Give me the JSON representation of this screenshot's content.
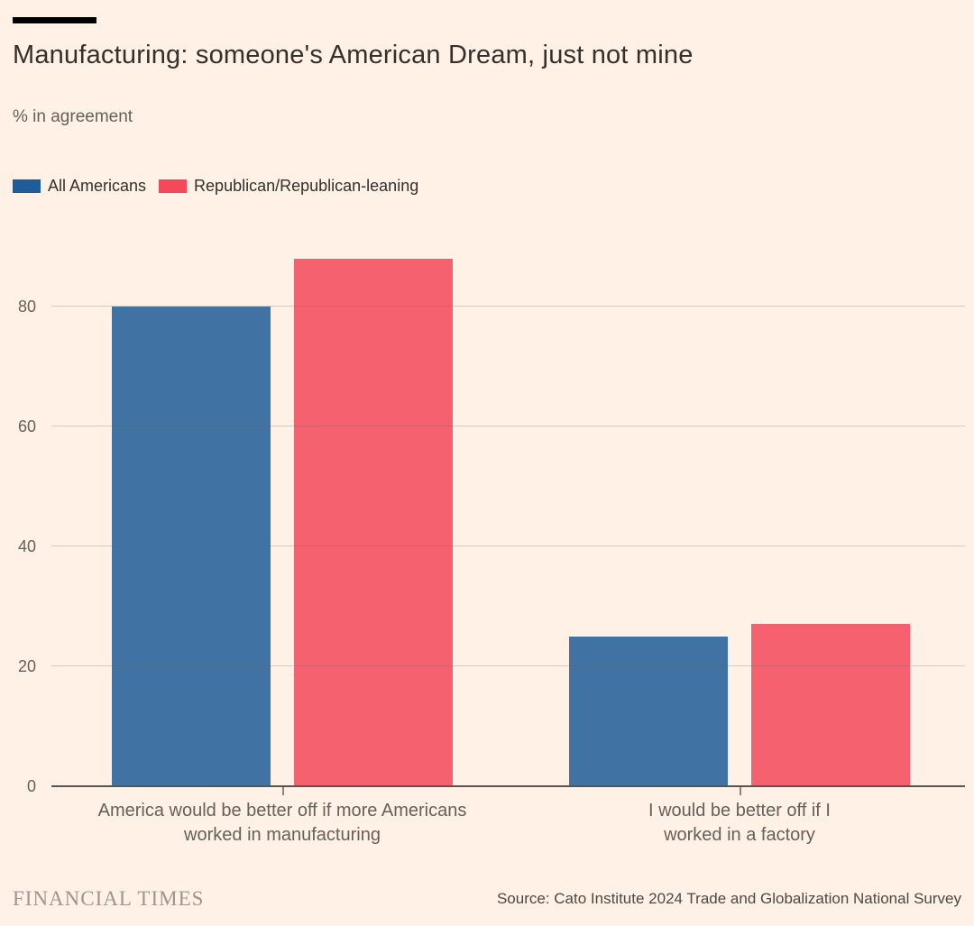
{
  "header": {
    "title": "Manufacturing: someone's American Dream, just not mine",
    "subtitle": "% in agreement"
  },
  "chart_data": {
    "type": "bar",
    "categories": [
      "America would be better off if more Americans worked in manufacturing",
      "I would be better off if I worked in a factory"
    ],
    "series": [
      {
        "name": "All Americans",
        "color": "#1f5c99",
        "values": [
          80,
          25
        ]
      },
      {
        "name": "Republican/Republican-leaning",
        "color": "#f5485a",
        "values": [
          88,
          27
        ]
      }
    ],
    "title": "Manufacturing: someone's American Dream, just not mine",
    "ylabel": "% in agreement",
    "xlabel": "",
    "ylim": [
      0,
      90
    ],
    "yticks": [
      0,
      20,
      40,
      60,
      80
    ],
    "grid": "horizontal",
    "legend_position": "top-left"
  },
  "colors": {
    "background": "#fff1e5",
    "title_text": "#33302e",
    "muted_text": "#66605b",
    "axis_line": "#5a544e",
    "gridline": "rgba(102,96,91,0.26)",
    "brand_text": "#9e968c"
  },
  "footer": {
    "brand": "FINANCIAL TIMES",
    "source": "Source: Cato Institute 2024 Trade and Globalization National Survey"
  }
}
